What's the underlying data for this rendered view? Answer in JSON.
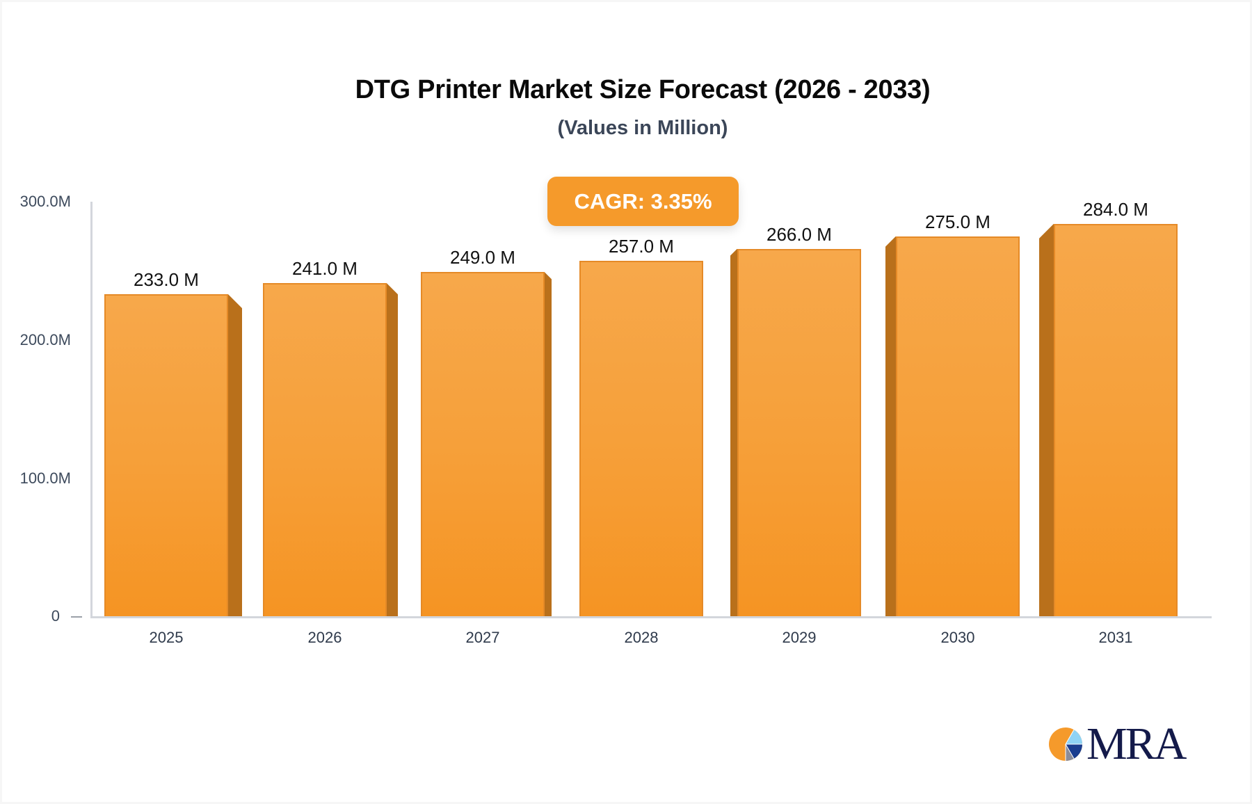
{
  "header": {
    "title": "DTG Printer Market Size Forecast (2026 - 2033)",
    "subtitle": "(Values in Million)"
  },
  "badge": {
    "label": "CAGR: 3.35%"
  },
  "colors": {
    "bar_front": "#f6a03a",
    "bar_side": "#b9701b",
    "badge_bg": "#f59a2b",
    "axis": "#d3d6dc",
    "logo_navy": "#141a4a"
  },
  "yaxis": {
    "ticks": [
      {
        "label": "300.0M",
        "value": 300
      },
      {
        "label": "200.0M",
        "value": 200
      },
      {
        "label": "100.0M",
        "value": 100
      },
      {
        "label": "0",
        "value": 0
      }
    ]
  },
  "bars": [
    {
      "year": "2025",
      "value": 233.0,
      "label": "233.0 M"
    },
    {
      "year": "2026",
      "value": 241.0,
      "label": "241.0 M"
    },
    {
      "year": "2027",
      "value": 249.0,
      "label": "249.0 M"
    },
    {
      "year": "2028",
      "value": 257.0,
      "label": "257.0 M"
    },
    {
      "year": "2029",
      "value": 266.0,
      "label": "266.0 M"
    },
    {
      "year": "2030",
      "value": 275.0,
      "label": "275.0 M"
    },
    {
      "year": "2031",
      "value": 284.0,
      "label": "284.0 M"
    }
  ],
  "logo": {
    "text": "MRA",
    "icon": "pie-chart-logo-icon"
  },
  "chart_data": {
    "type": "bar",
    "title": "DTG Printer Market Size Forecast (2026 - 2033)",
    "subtitle": "(Values in Million)",
    "categories": [
      "2025",
      "2026",
      "2027",
      "2028",
      "2029",
      "2030",
      "2031"
    ],
    "values": [
      233.0,
      241.0,
      249.0,
      257.0,
      266.0,
      275.0,
      284.0
    ],
    "data_labels": [
      "233.0 M",
      "241.0 M",
      "249.0 M",
      "257.0 M",
      "266.0 M",
      "275.0 M",
      "284.0 M"
    ],
    "xlabel": "",
    "ylabel": "",
    "ylim": [
      0,
      300
    ],
    "yticks": [
      "0",
      "100.0M",
      "200.0M",
      "300.0M"
    ],
    "grid": false,
    "legend": null,
    "annotations": [
      "CAGR: 3.35%"
    ],
    "style": "3d-bar"
  }
}
